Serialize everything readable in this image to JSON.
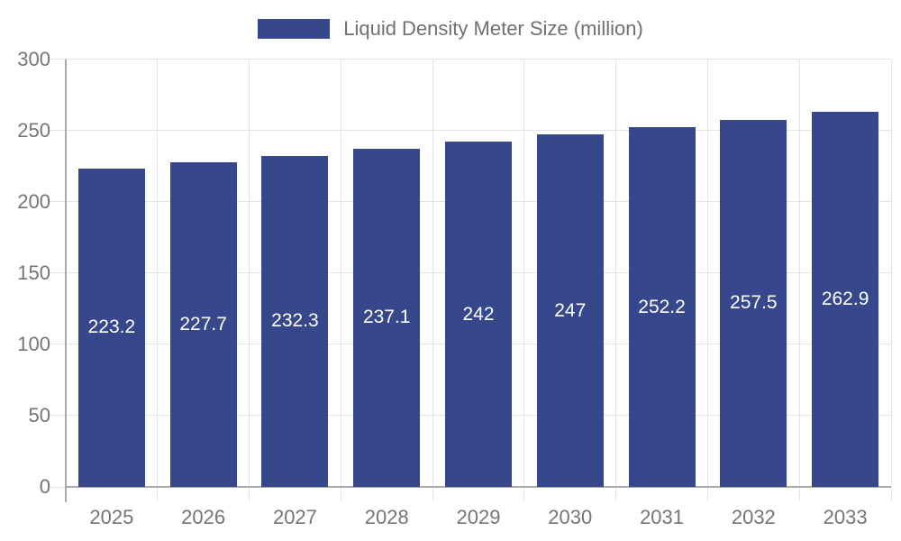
{
  "chart_data": {
    "type": "bar",
    "title": "Liquid Density Meter Size (million)",
    "legend": [
      "Liquid Density Meter Size (million)"
    ],
    "legend_position": "top-center",
    "categories": [
      "2025",
      "2026",
      "2027",
      "2028",
      "2029",
      "2030",
      "2031",
      "2032",
      "2033"
    ],
    "series": [
      {
        "name": "Liquid Density Meter Size (million)",
        "values": [
          223.2,
          227.7,
          232.3,
          237.1,
          242,
          247,
          252.2,
          257.5,
          262.9
        ],
        "value_labels": [
          "223.2",
          "227.7",
          "232.3",
          "237.1",
          "242",
          "247",
          "252.2",
          "257.5",
          "262.9"
        ]
      }
    ],
    "xlabel": "",
    "ylabel": "",
    "ylim": [
      0,
      300
    ],
    "yticks": [
      0,
      50,
      100,
      150,
      200,
      250,
      300
    ],
    "grid": true,
    "colors": {
      "bar": "#36478B",
      "grid": "#e4e4e4",
      "axis": "#aaaaaa",
      "axis_text": "#757575",
      "legend_text": "#707070",
      "value_label": "#ffffff",
      "background": "#ffffff"
    }
  }
}
